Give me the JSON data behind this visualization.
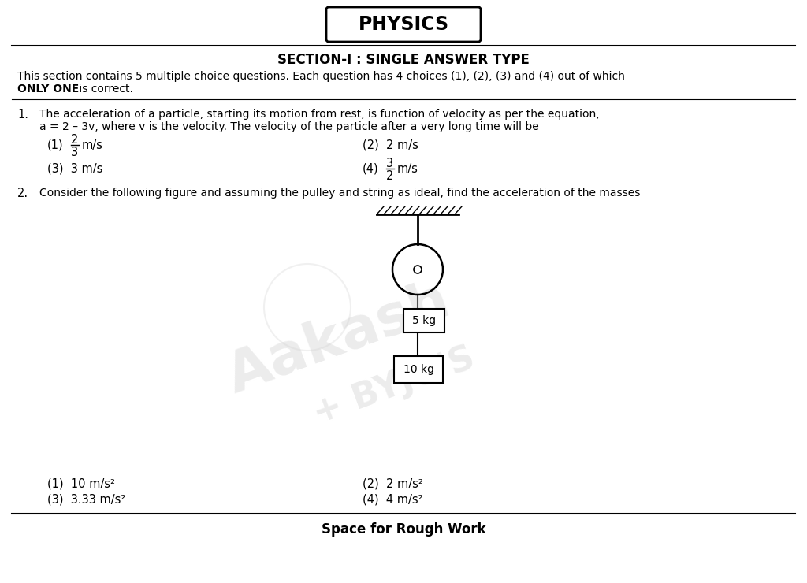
{
  "bg_color": "#ffffff",
  "title": "PHYSICS",
  "section_title": "SECTION-I : SINGLE ANSWER TYPE",
  "q2_opt1": "(1)  10 m/s²",
  "q2_opt2": "(2)  2 m/s²",
  "q2_opt3": "(3)  3.33 m/s²",
  "q2_opt4": "(4)  4 m/s²",
  "footer": "Space for Rough Work"
}
